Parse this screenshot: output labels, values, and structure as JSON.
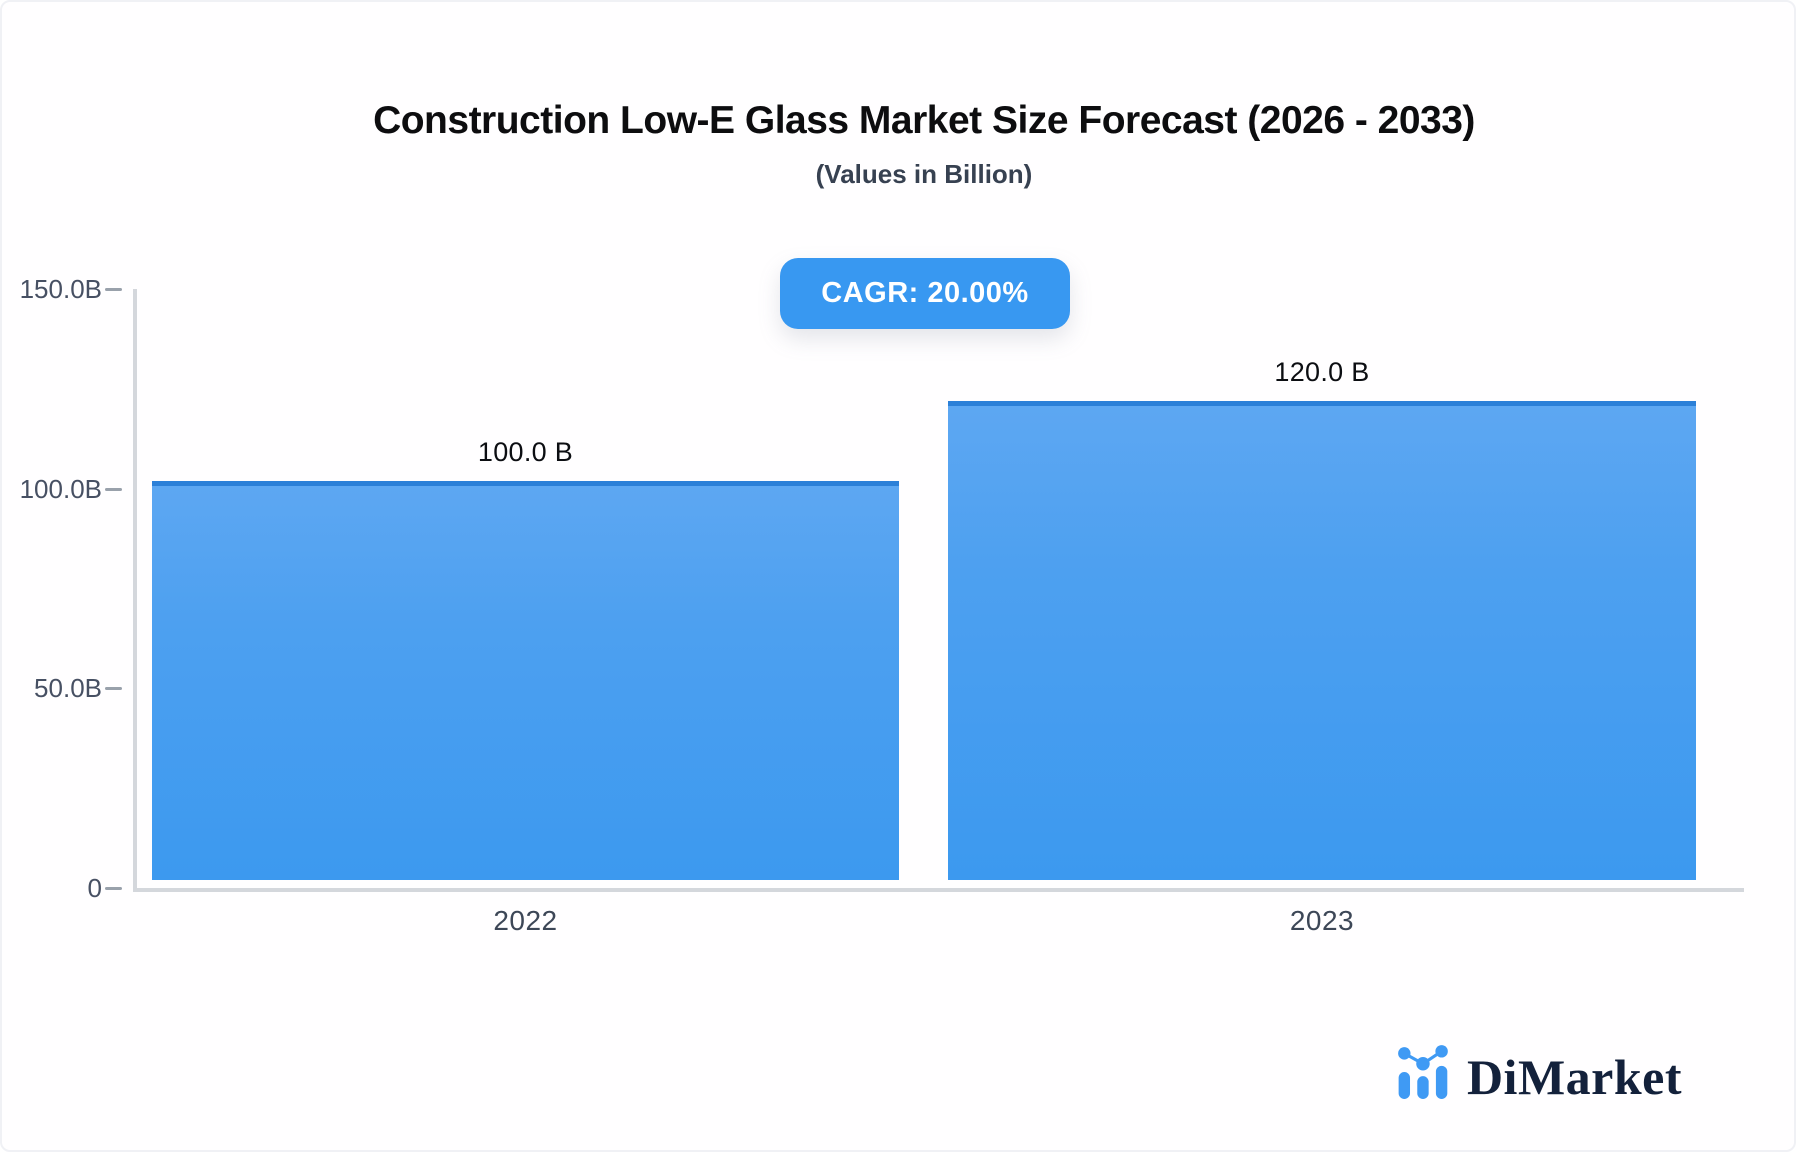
{
  "header": {
    "title": "Construction Low-E Glass Market Size Forecast (2026 - 2033)",
    "subtitle": "(Values in Billion)"
  },
  "badge": {
    "label": "CAGR: 20.00%",
    "background": "#3898f1",
    "text_color": "#ffffff"
  },
  "chart_data": {
    "type": "bar",
    "title": "Construction Low-E Glass Market Size Forecast (2026 - 2033)",
    "subtitle": "(Values in Billion)",
    "categories": [
      "2022",
      "2023"
    ],
    "values": [
      100.0,
      120.0
    ],
    "value_labels": [
      "100.0 B",
      "120.0 B"
    ],
    "unit": "Billion",
    "y_ticks": [
      "150.0B",
      "100.0B",
      "50.0B",
      "0"
    ],
    "y_tick_values": [
      150,
      100,
      50,
      0
    ],
    "ylim": [
      0,
      150
    ],
    "xlabel": "",
    "ylabel": "",
    "grid": false,
    "legend": "none",
    "bar_color_top": "#5da7f2",
    "bar_color_bottom": "#3c99ef",
    "bar_top_border": "#2c80d8",
    "axis_color": "#d4d7dc"
  },
  "footer": {
    "brand": "DiMarket",
    "logo_icon": "mini-bar-chart-icon",
    "brand_color": "#13213b",
    "logo_blue": "#3f9af4"
  }
}
